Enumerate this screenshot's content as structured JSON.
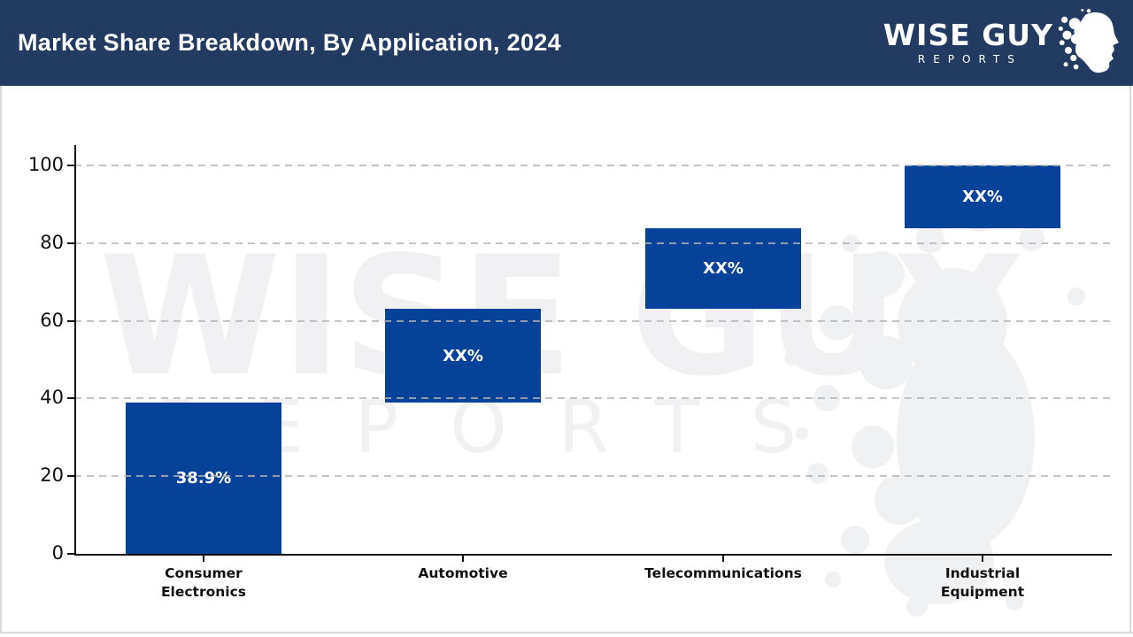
{
  "header": {
    "title": "Market Share Breakdown, By Application, 2024",
    "logo": {
      "line1": "WISE GUY",
      "line2": "REPORTS"
    }
  },
  "watermark": {
    "line1": "WISE GUY",
    "line2": "REPORTS"
  },
  "chart_data": {
    "type": "bar",
    "subtype": "waterfall",
    "title": "Market Share Breakdown, By Application, 2024",
    "categories": [
      "Consumer Electronics",
      "Automotive",
      "Telecommunications",
      "Industrial Equipment"
    ],
    "segments": [
      {
        "category": "Consumer Electronics",
        "start": 0,
        "end": 38.9,
        "label": "38.9%"
      },
      {
        "category": "Automotive",
        "start": 38.9,
        "end": 63.0,
        "label": "XX%"
      },
      {
        "category": "Telecommunications",
        "start": 63.0,
        "end": 83.9,
        "label": "XX%"
      },
      {
        "category": "Industrial Equipment",
        "start": 83.9,
        "end": 100.0,
        "label": "XX%"
      }
    ],
    "xlabel": "",
    "ylabel": "",
    "yticks": [
      0,
      20,
      40,
      60,
      80,
      100
    ],
    "ylim": [
      0,
      105
    ],
    "grid": "horizontal-dashed",
    "legend": "none",
    "bar_color": "#064299",
    "bar_label_color": "#ffffff",
    "axis_color": "#111111",
    "header_color": "#233a63",
    "watermark_color": "#f1f1f3"
  }
}
